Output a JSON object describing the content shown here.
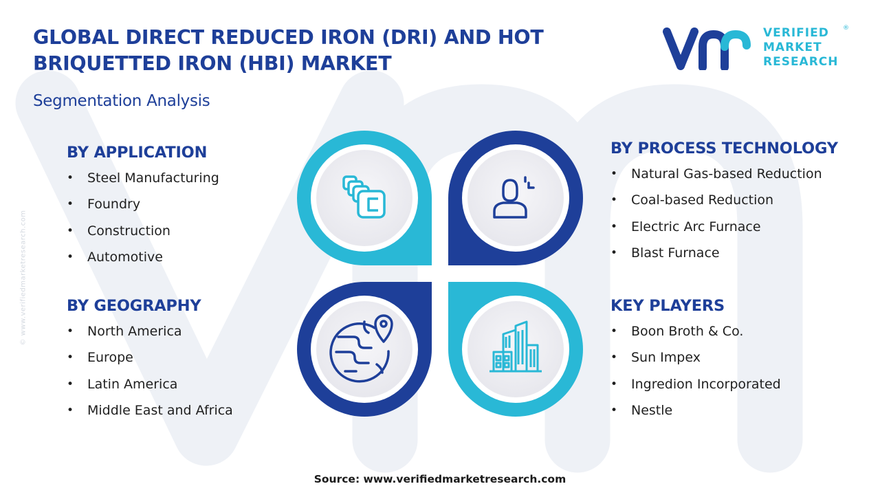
{
  "header": {
    "title": "GLOBAL DIRECT REDUCED IRON (DRI) AND HOT BRIQUETTED IRON (HBI) MARKET",
    "subtitle": "Segmentation Analysis"
  },
  "logo": {
    "line1": "VERIFIED",
    "line2": "MARKET",
    "line3": "RESEARCH",
    "registered": "®"
  },
  "side_watermark": "© www.verifiedmarketresearch.com",
  "segments": {
    "application": {
      "heading": "BY APPLICATION",
      "items": [
        "Steel Manufacturing",
        "Foundry",
        "Construction",
        "Automotive"
      ]
    },
    "geography": {
      "heading": "BY GEOGRAPHY",
      "items": [
        "North America",
        "Europe",
        "Latin America",
        "Middle East and Africa"
      ]
    },
    "process_technology": {
      "heading": "BY PROCESS TECHNOLOGY",
      "items": [
        "Natural Gas-based Reduction",
        "Coal-based Reduction",
        "Electric Arc Furnace",
        "Blast Furnace"
      ]
    },
    "key_players": {
      "heading": "KEY PLAYERS",
      "items": [
        "Boon Broth & Co.",
        "Sun Impex",
        "Ingredion Incorporated",
        "Nestle"
      ]
    }
  },
  "icons": [
    "stacked-blocks-icon",
    "person-icon",
    "globe-location-icon",
    "city-buildings-icon"
  ],
  "colors": {
    "navy": "#1e3f99",
    "cyan": "#29b8d6",
    "watermark": "#eef1f6",
    "disc": "#efeff3"
  },
  "footer": {
    "source": "Source: www.verifiedmarketresearch.com"
  }
}
